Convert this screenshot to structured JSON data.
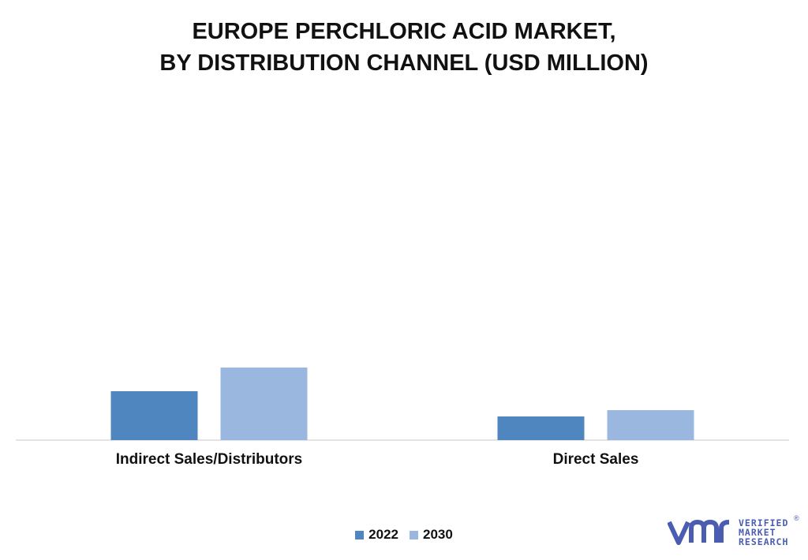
{
  "title_line1": "EUROPE PERCHLORIC ACID MARKET,",
  "title_line2": "BY DISTRIBUTION CHANNEL (USD MILLION)",
  "logo": {
    "line1": "VERIFIED",
    "line2": "MARKET",
    "line3": "RESEARCH",
    "mark": "®"
  },
  "colors": {
    "2022": "#4f86bf",
    "2030": "#9ab8df",
    "axis": "#c8c8c8"
  },
  "chart_data": {
    "type": "bar",
    "title": "EUROPE PERCHLORIC ACID MARKET, BY DISTRIBUTION CHANNEL (USD MILLION)",
    "categories": [
      "Indirect Sales/Distributors",
      "Direct Sales"
    ],
    "series": [
      {
        "name": "2022",
        "values": [
          62,
          30
        ]
      },
      {
        "name": "2030",
        "values": [
          92,
          38
        ]
      }
    ],
    "ylim": [
      0,
      420
    ],
    "grid": false,
    "legend_position": "bottom-center",
    "xlabel": "",
    "ylabel": ""
  }
}
